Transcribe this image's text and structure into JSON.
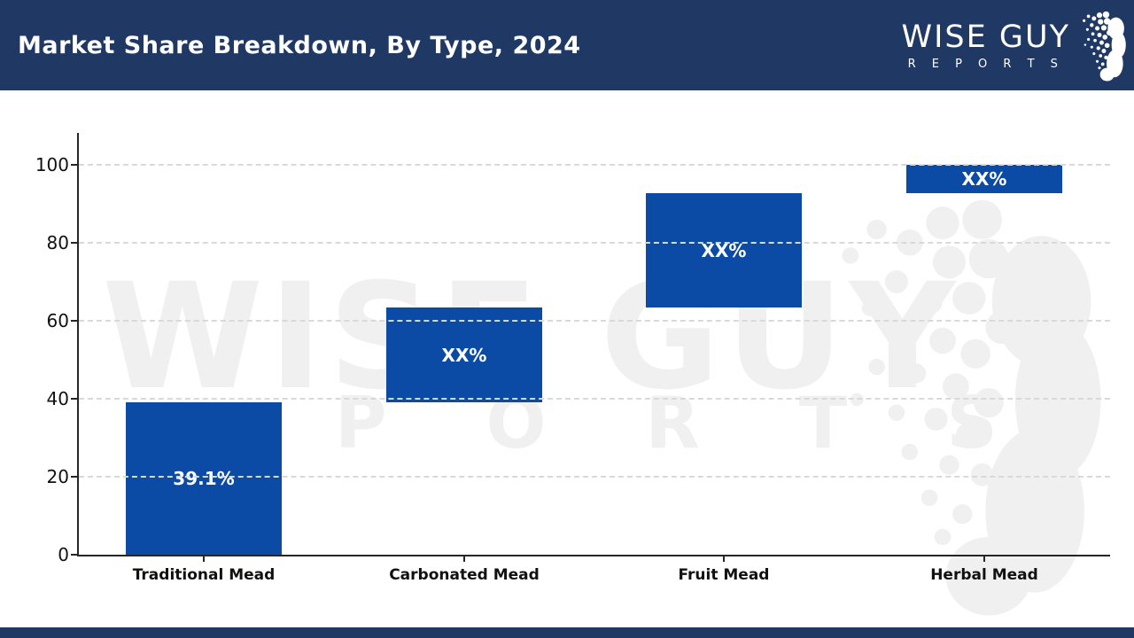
{
  "header": {
    "title": "Market Share Breakdown, By Type, 2024"
  },
  "logo": {
    "line1": "WISE GUY",
    "line2": "R E P O R T S",
    "face_icon": "dotted-head-profile"
  },
  "watermark": {
    "line1": "WISE GUY",
    "line2": "P O R T S",
    "face_icon": "dotted-head-profile"
  },
  "chart_data": {
    "type": "bar",
    "subtype": "waterfall-floating-bars",
    "title": "Market Share Breakdown, By Type, 2024",
    "categories": [
      "Traditional Mead",
      "Carbonated Mead",
      "Fruit Mead",
      "Herbal Mead"
    ],
    "segments": [
      {
        "category": "Traditional Mead",
        "start": 0,
        "end": 39.1,
        "label": "39.1%"
      },
      {
        "category": "Carbonated Mead",
        "start": 39.1,
        "end": 63.3,
        "label": "XX%"
      },
      {
        "category": "Fruit Mead",
        "start": 63.3,
        "end": 92.7,
        "label": "XX%"
      },
      {
        "category": "Herbal Mead",
        "start": 92.7,
        "end": 100,
        "label": "XX%"
      }
    ],
    "yticks": [
      0,
      20,
      40,
      60,
      80,
      100
    ],
    "ylim": [
      0,
      105
    ],
    "xlabel": "",
    "ylabel": "",
    "grid": "horizontal-dashed",
    "legend": "none"
  },
  "colors": {
    "header_bg": "#1f3864",
    "footer_bg": "#1f3864",
    "bar_fill": "#0b4ba5",
    "grid_line": "#d9d9d9",
    "axis_line": "#262626",
    "tick_text": "#111111",
    "bar_label_text": "#ffffff",
    "watermark": "#f0f0f0"
  }
}
